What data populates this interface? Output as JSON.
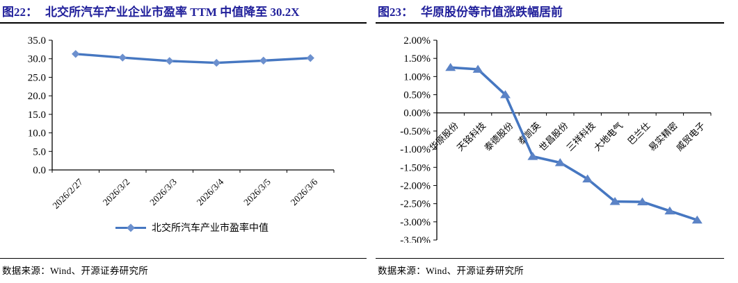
{
  "panels": [
    {
      "figure_label": "图22：",
      "title": "北交所汽车产业企业市盈率 TTM 中值降至 30.2X",
      "source": "数据来源：Wind、开源证券研究所"
    },
    {
      "figure_label": "图23：",
      "title": "华原股份等市值涨跌幅居前",
      "source": "数据来源：Wind、开源证券研究所"
    }
  ],
  "chart_data": [
    {
      "type": "line",
      "title": "北交所汽车产业企业市盈率 TTM 中值降至 30.2X",
      "categories": [
        "2026/2/27",
        "2026/3/2",
        "2026/3/3",
        "2026/3/4",
        "2026/3/5",
        "2026/3/6"
      ],
      "series": [
        {
          "name": "北交所汽车产业市盈率中值",
          "values": [
            31.3,
            30.3,
            29.4,
            28.9,
            29.5,
            30.2
          ]
        }
      ],
      "xlabel": "",
      "ylabel": "",
      "ylim": [
        0,
        35
      ],
      "ytick_step": 5,
      "ytick_format": "fixed1",
      "grid": false,
      "legend_position": "bottom",
      "marker": "diamond",
      "x_axis_at_zero": false,
      "line_color": "#4677C1",
      "marker_color": "#6C90CE"
    },
    {
      "type": "line",
      "title": "华原股份等市值涨跌幅居前",
      "categories": [
        "华原股份",
        "天铭科技",
        "泰德股份",
        "泰凯英",
        "世昌股份",
        "三祥科技",
        "大地电气",
        "巴兰仕",
        "易实精密",
        "威贸电子"
      ],
      "series": [
        {
          "name": "市值涨跌幅",
          "values": [
            1.25,
            1.2,
            0.5,
            -1.2,
            -1.37,
            -1.82,
            -2.44,
            -2.45,
            -2.7,
            -2.95
          ]
        }
      ],
      "xlabel": "",
      "ylabel": "",
      "ylim": [
        -3.5,
        2.0
      ],
      "ytick_step": 0.5,
      "ytick_format": "percent",
      "grid": false,
      "legend_position": "none",
      "marker": "triangle",
      "x_axis_at_zero": true,
      "line_color": "#4677C1",
      "marker_color": "#5B83C6"
    }
  ],
  "colors": {
    "title_navy": "#21209B",
    "axis": "#000000",
    "accent_line": "#4677C1"
  }
}
